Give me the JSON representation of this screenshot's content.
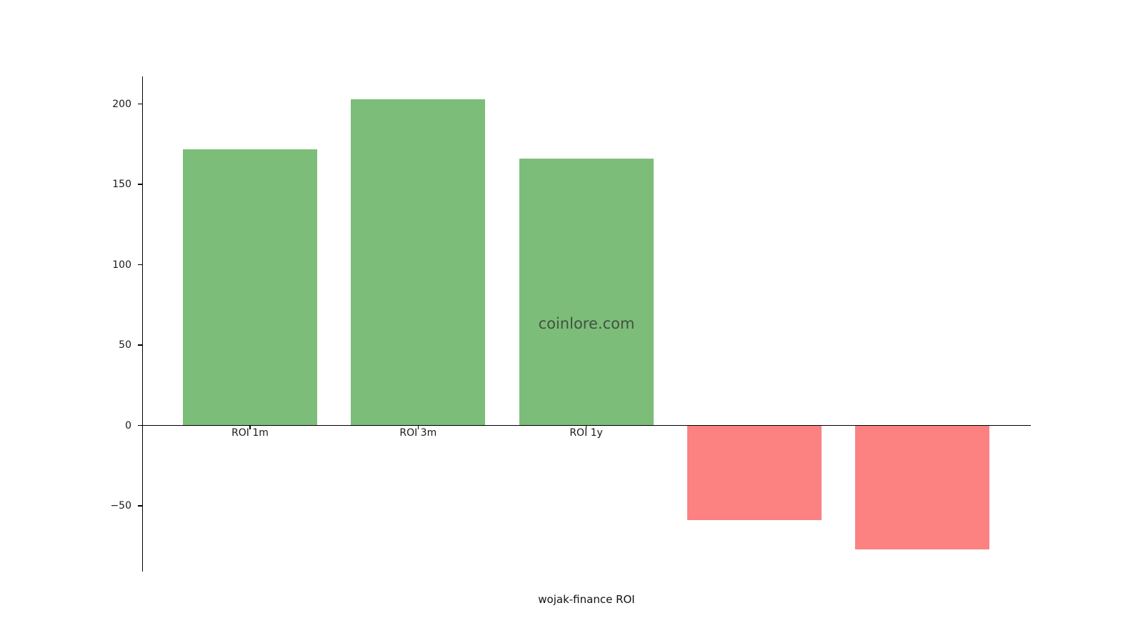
{
  "page": {
    "watermark": "coinlore.com",
    "title": "wojak-finance ROI"
  },
  "chart_data": {
    "type": "bar",
    "title": "wojak-finance ROI",
    "watermark": "coinlore.com",
    "categories": [
      "ROI 1m",
      "ROI 3m",
      "ROI 1y",
      "",
      ""
    ],
    "values": [
      172,
      203,
      166,
      -59,
      -77
    ],
    "xlabel": "wojak-finance ROI",
    "ylabel": "",
    "ylim": [
      -91,
      217
    ],
    "yticks": [
      200,
      150,
      100,
      50,
      0,
      -50
    ],
    "grid": false,
    "legend": null,
    "colors": {
      "positive": "#7dbd7a",
      "negative": "#fc8181",
      "axis": "#000000",
      "tick_label": "#1a1a1a",
      "watermark_text": "#323732"
    }
  }
}
